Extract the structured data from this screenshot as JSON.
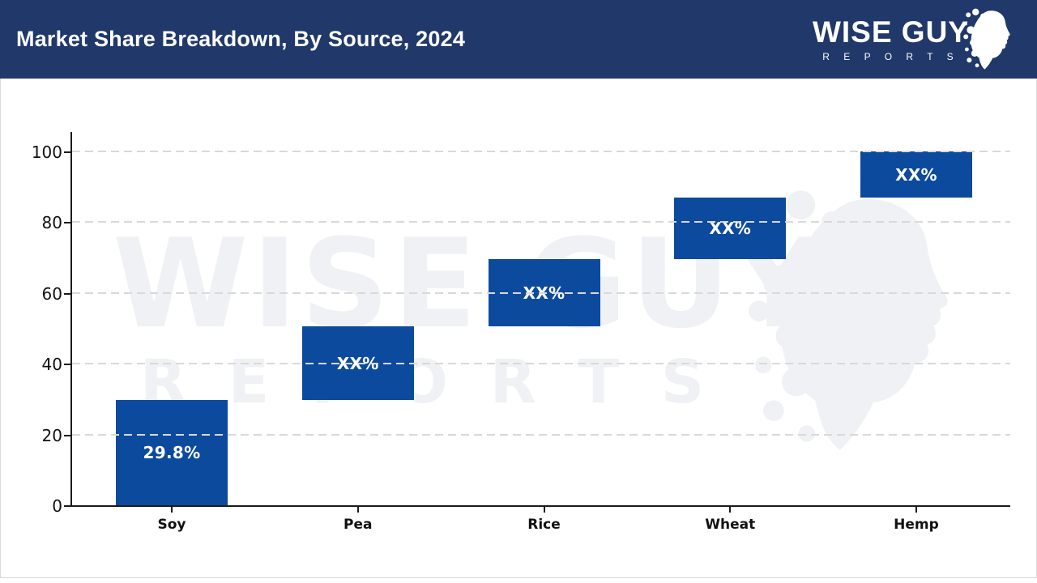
{
  "header": {
    "title": "Market Share Breakdown, By Source, 2024"
  },
  "logo": {
    "name": "WISE GUY",
    "tagline": "R E P O R T S"
  },
  "watermark": {
    "name": "WISE GUY",
    "tagline": "R E P O R T S"
  },
  "colors": {
    "header_bg": "#20386a",
    "bar": "#0c4a9e",
    "grid": "#d9d9d9",
    "axis": "#1a1a1a",
    "value_label": "#ffffff",
    "watermark": "#f0f1f4",
    "panel_border": "#d9d9d9"
  },
  "chart_data": {
    "type": "bar",
    "subtype": "waterfall",
    "title": "Market Share Breakdown, By Source, 2024",
    "categories": [
      "Soy",
      "Pea",
      "Rice",
      "Wheat",
      "Hemp"
    ],
    "bars": [
      {
        "category": "Soy",
        "start": 0,
        "end": 29.8,
        "label": "29.8%"
      },
      {
        "category": "Pea",
        "start": 29.8,
        "end": 50.5,
        "label": "XX%"
      },
      {
        "category": "Rice",
        "start": 50.5,
        "end": 69.6,
        "label": "XX%"
      },
      {
        "category": "Wheat",
        "start": 69.6,
        "end": 86.9,
        "label": "XX%"
      },
      {
        "category": "Hemp",
        "start": 86.9,
        "end": 100,
        "label": "XX%"
      }
    ],
    "yticks": [
      0,
      20,
      40,
      60,
      80,
      100
    ],
    "ylim": [
      0,
      105
    ],
    "xlabel": "",
    "ylabel": "",
    "grid": {
      "horizontal": true,
      "style": "dashed",
      "on_top_of_bars": true
    },
    "legend": "none",
    "bar_color": "#0c4a9e",
    "value_label_color": "#ffffff"
  }
}
